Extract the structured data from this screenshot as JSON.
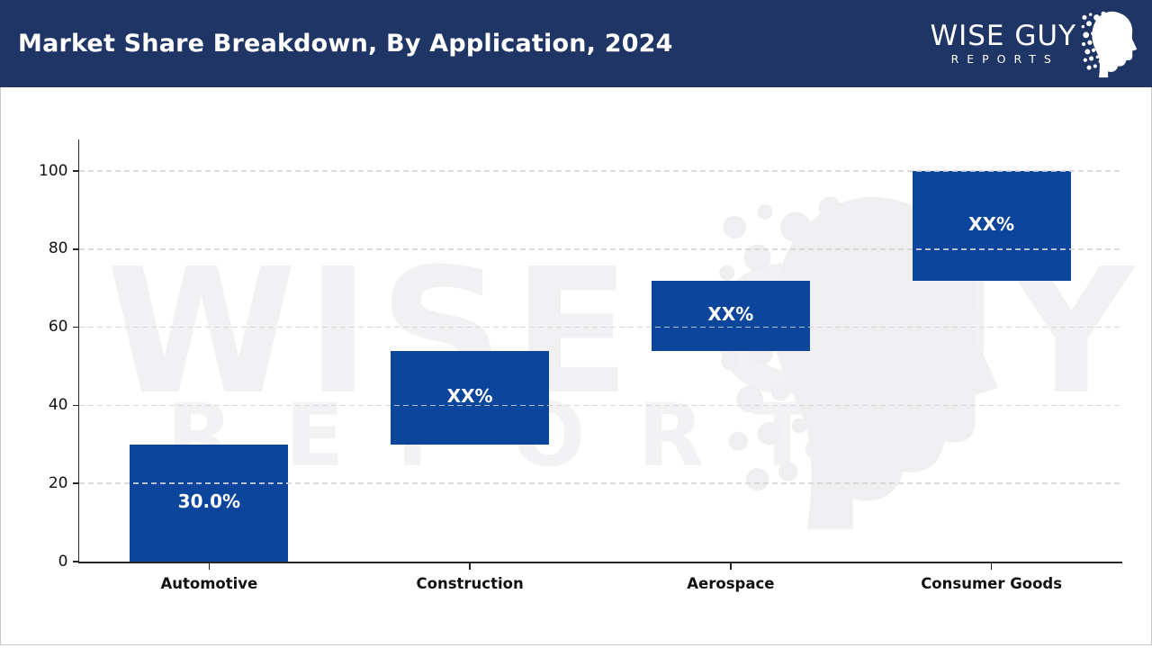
{
  "header": {
    "title": "Market Share Breakdown, By Application, 2024",
    "logo_line1": "WISE GUY",
    "logo_line2": "REPORTS"
  },
  "watermark": {
    "line1": "WISE GUY",
    "line2": "REPORTS"
  },
  "colors": {
    "header_bg": "#1f3566",
    "bar": "#0b459c",
    "grid": "#d5d5d5",
    "axis": "#262626",
    "watermark": "#f1f1f4"
  },
  "chart_data": {
    "type": "bar",
    "subtype": "waterfall",
    "title": "Market Share Breakdown, By Application, 2024",
    "categories": [
      "Automotive",
      "Construction",
      "Aerospace",
      "Consumer Goods"
    ],
    "values": [
      30,
      24,
      18,
      28
    ],
    "cumulative": [
      [
        0,
        30
      ],
      [
        30,
        54
      ],
      [
        54,
        72
      ],
      [
        72,
        100
      ]
    ],
    "bar_labels": [
      "30.0%",
      "XX%",
      "XX%",
      "XX%"
    ],
    "y_ticks": [
      0,
      20,
      40,
      60,
      80,
      100
    ],
    "ylim": [
      0,
      100
    ],
    "xlabel": "",
    "ylabel": "",
    "legend": "none",
    "grid": "horizontal-dashed",
    "bar_color": "#0b459c"
  }
}
